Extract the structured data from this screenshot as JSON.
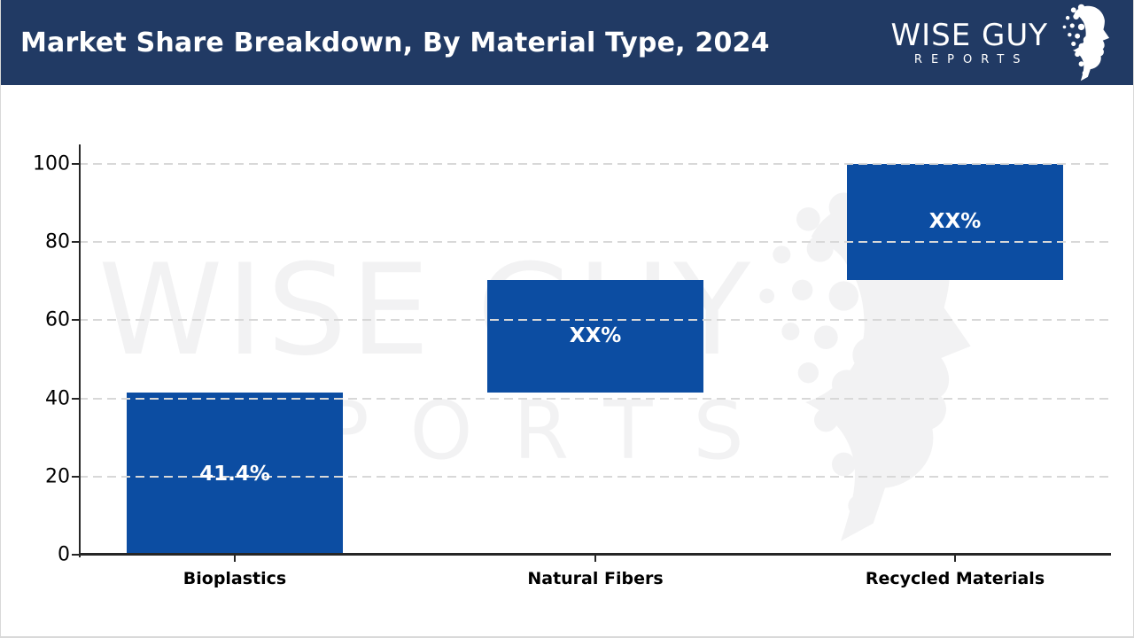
{
  "header": {
    "title": "Market Share Breakdown, By Material Type, 2024",
    "logo": {
      "line1": "WISE GUY",
      "line2": "REPORTS"
    }
  },
  "watermark": {
    "line1": "WISE GUY",
    "line2": "REPORTS"
  },
  "colors": {
    "header_bg": "#213a64",
    "bar": "#0c4da2",
    "grid": "#d8d8d8",
    "axis": "#262626",
    "value_label": "#ffffff",
    "watermark": "#f2f2f3"
  },
  "chart_data": {
    "type": "bar",
    "subtype": "waterfall",
    "title": "Market Share Breakdown, By Material Type, 2024",
    "categories": [
      "Bioplastics",
      "Natural Fibers",
      "Recycled Materials"
    ],
    "bars": [
      {
        "category": "Bioplastics",
        "start": 0,
        "end": 41.4,
        "label": "41.4%"
      },
      {
        "category": "Natural Fibers",
        "start": 41.4,
        "end": 70.4,
        "label": "XX%"
      },
      {
        "category": "Recycled Materials",
        "start": 70.4,
        "end": 100,
        "label": "XX%"
      }
    ],
    "xlabel": "",
    "ylabel": "",
    "ylim": [
      0,
      105
    ],
    "yticks": [
      0,
      20,
      40,
      60,
      80,
      100
    ],
    "grid": "horizontal-dashed-above-bars",
    "legend": "none"
  }
}
